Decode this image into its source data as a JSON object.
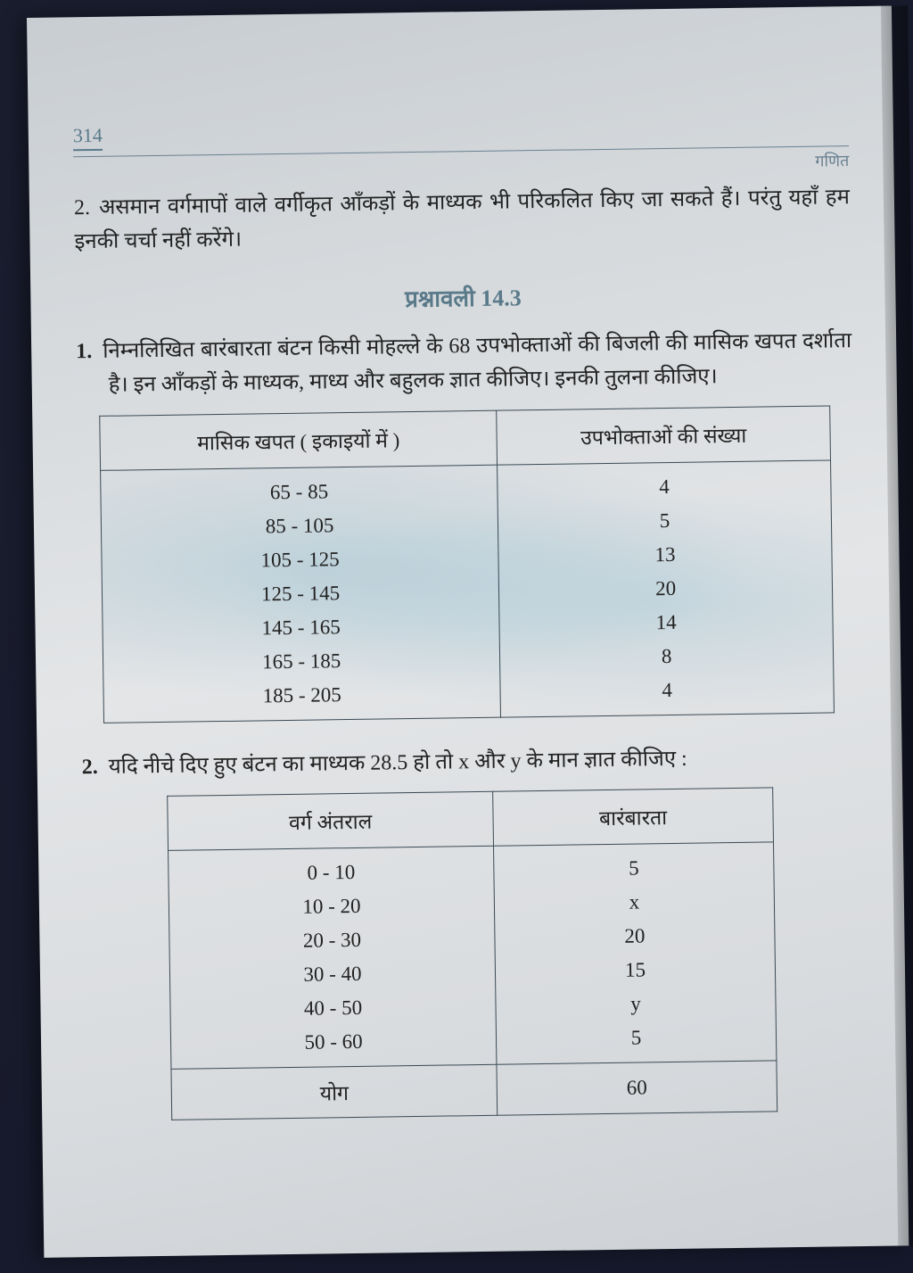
{
  "header": {
    "page_number": "314",
    "subject": "गणित"
  },
  "intro": {
    "num": "2.",
    "text": "असमान वर्गमापों वाले वर्गीकृत आँकड़ों के माध्यक भी परिकलित किए जा सकते हैं। परंतु यहाँ हम इनकी चर्चा नहीं करेंगे।"
  },
  "exercise_title": "प्रश्नावली 14.3",
  "q1": {
    "num": "1.",
    "text": "निम्नलिखित बारंबारता बंटन किसी मोहल्ले के 68 उपभोक्ताओं की बिजली की मासिक खपत दर्शाता है। इन आँकड़ों के माध्यक, माध्य और बहुलक ज्ञात कीजिए। इनकी तुलना कीजिए।",
    "table": {
      "headers": [
        "मासिक खपत ( इकाइयों में )",
        "उपभोक्ताओं की संख्या"
      ],
      "rows": [
        [
          "65 - 85",
          "4"
        ],
        [
          "85 - 105",
          "5"
        ],
        [
          "105 - 125",
          "13"
        ],
        [
          "125 - 145",
          "20"
        ],
        [
          "145 - 165",
          "14"
        ],
        [
          "165 - 185",
          "8"
        ],
        [
          "185 - 205",
          "4"
        ]
      ]
    }
  },
  "q2": {
    "num": "2.",
    "text": "यदि नीचे दिए हुए बंटन का माध्यक 28.5 हो तो x और y के मान ज्ञात कीजिए :",
    "table": {
      "headers": [
        "वर्ग अंतराल",
        "बारंबारता"
      ],
      "rows": [
        [
          "0 - 10",
          "5"
        ],
        [
          "10 - 20",
          "x"
        ],
        [
          "20 - 30",
          "20"
        ],
        [
          "30 - 40",
          "15"
        ],
        [
          "40 - 50",
          "y"
        ],
        [
          "50 - 60",
          "5"
        ]
      ],
      "footer": [
        "योग",
        "60"
      ]
    }
  }
}
